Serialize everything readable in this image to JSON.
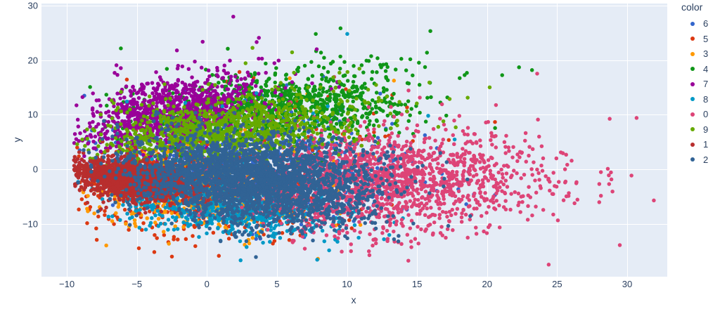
{
  "figure": {
    "paper_bg": "#ffffff",
    "plot_bg": "#E5ECF6",
    "grid_color": "#ffffff",
    "font_color": "#2a3f5f"
  },
  "axes": {
    "x": {
      "title": "x",
      "tick_values": [
        -10,
        -5,
        0,
        5,
        10,
        15,
        20,
        25,
        30
      ],
      "tick_labels": [
        "−10",
        "−5",
        "0",
        "5",
        "10",
        "15",
        "20",
        "25",
        "30"
      ]
    },
    "y": {
      "title": "y",
      "tick_values": [
        30,
        20,
        10,
        0,
        -10
      ],
      "tick_labels": [
        "30",
        "20",
        "10",
        "0",
        "−10"
      ]
    }
  },
  "legend": {
    "title": "color",
    "items": [
      {
        "label": "6",
        "color": "#3366CC"
      },
      {
        "label": "5",
        "color": "#DC3912"
      },
      {
        "label": "3",
        "color": "#FF9900"
      },
      {
        "label": "4",
        "color": "#109618"
      },
      {
        "label": "7",
        "color": "#990099"
      },
      {
        "label": "8",
        "color": "#0099C6"
      },
      {
        "label": "0",
        "color": "#DD4477"
      },
      {
        "label": "9",
        "color": "#66AA00"
      },
      {
        "label": "1",
        "color": "#B82E2E"
      },
      {
        "label": "2",
        "color": "#316395"
      }
    ]
  },
  "chart_data": {
    "type": "scatter",
    "title": "",
    "xlabel": "x",
    "ylabel": "y",
    "x_range": [
      -11.81,
      32.86
    ],
    "y_range": [
      -19.71,
      30.39
    ],
    "grid": true,
    "legend_position": "top-right",
    "marker_size_px": 5.5,
    "palette_name": "plotly-G10",
    "description": "Dense 2D embedding scatter (~12000 points) of ten classes labeled by color; classes drawn in legend order so later classes overplot earlier ones. Clusters summarized as gaussian components (center, std, correlation, count) read from the pixels.",
    "render": {
      "seed": 7,
      "clip": {
        "x_min": -9.5,
        "x_max": 32.4,
        "y_min": -17.5,
        "y_max": 28.2
      }
    },
    "series": [
      {
        "name": "6",
        "color": "#3366CC",
        "components": [
          {
            "center": [
              3.0,
              0.5
            ],
            "std": [
              5.2,
              4.2
            ],
            "rho": -0.1,
            "n": 800
          },
          {
            "center": [
              5.0,
              5.0
            ],
            "std": [
              6.0,
              6.0
            ],
            "rho": 0.0,
            "n": 70
          }
        ]
      },
      {
        "name": "5",
        "color": "#DC3912",
        "components": [
          {
            "center": [
              -0.5,
              -3.5
            ],
            "std": [
              4.8,
              4.2
            ],
            "rho": -0.15,
            "n": 650
          },
          {
            "center": [
              5.0,
              8.0
            ],
            "std": [
              6.0,
              6.0
            ],
            "rho": 0.0,
            "n": 60
          }
        ]
      },
      {
        "name": "3",
        "color": "#FF9900",
        "components": [
          {
            "center": [
              0.0,
              -4.5
            ],
            "std": [
              4.2,
              3.4
            ],
            "rho": -0.2,
            "n": 480
          },
          {
            "center": [
              3.0,
              6.0
            ],
            "std": [
              5.0,
              5.0
            ],
            "rho": 0.0,
            "n": 40
          }
        ]
      },
      {
        "name": "4",
        "color": "#109618",
        "components": [
          {
            "center": [
              5.0,
              11.5
            ],
            "std": [
              4.8,
              3.3
            ],
            "rho": 0.15,
            "n": 950
          },
          {
            "center": [
              10.0,
              16.0
            ],
            "std": [
              6.0,
              4.0
            ],
            "rho": 0.0,
            "n": 50
          }
        ]
      },
      {
        "name": "7",
        "color": "#990099",
        "components": [
          {
            "center": [
              -2.5,
              10.5
            ],
            "std": [
              3.2,
              3.3
            ],
            "rho": 0.5,
            "n": 950
          },
          {
            "center": [
              0.0,
              16.0
            ],
            "std": [
              5.0,
              4.0
            ],
            "rho": 0.0,
            "n": 60
          }
        ]
      },
      {
        "name": "8",
        "color": "#0099C6",
        "components": [
          {
            "center": [
              1.5,
              -7.0
            ],
            "std": [
              3.8,
              2.6
            ],
            "rho": -0.3,
            "n": 700
          },
          {
            "center": [
              4.0,
              4.0
            ],
            "std": [
              5.0,
              6.0
            ],
            "rho": 0.0,
            "n": 50
          }
        ]
      },
      {
        "name": "0",
        "color": "#DD4477",
        "components": [
          {
            "center": [
              11.5,
              -2.0
            ],
            "std": [
              4.6,
              4.6
            ],
            "rho": 0.05,
            "n": 1500
          },
          {
            "center": [
              19.0,
              -1.0
            ],
            "std": [
              4.8,
              4.6
            ],
            "rho": 0.0,
            "n": 280
          }
        ]
      },
      {
        "name": "9",
        "color": "#66AA00",
        "components": [
          {
            "center": [
              1.0,
              7.0
            ],
            "std": [
              4.4,
              2.9
            ],
            "rho": 0.35,
            "n": 1000
          },
          {
            "center": [
              8.0,
              12.0
            ],
            "std": [
              6.0,
              4.0
            ],
            "rho": 0.0,
            "n": 60
          }
        ]
      },
      {
        "name": "1",
        "color": "#B82E2E",
        "components": [
          {
            "center": [
              -5.3,
              -1.8
            ],
            "std": [
              2.3,
              1.9
            ],
            "rho": -0.35,
            "n": 1500
          }
        ]
      },
      {
        "name": "2",
        "color": "#316395",
        "components": [
          {
            "center": [
              3.5,
              -2.0
            ],
            "std": [
              4.3,
              3.9
            ],
            "rho": -0.2,
            "n": 2700
          }
        ]
      }
    ]
  }
}
